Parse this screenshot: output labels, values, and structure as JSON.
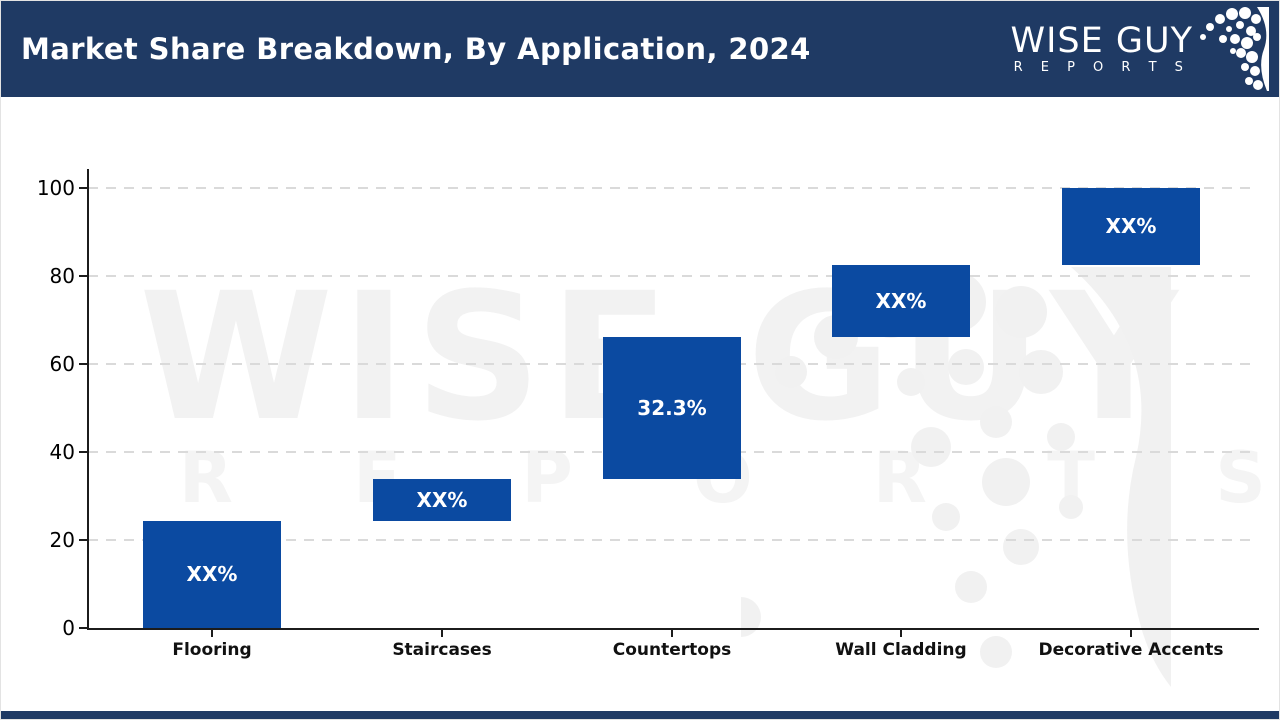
{
  "header": {
    "title": "Market Share Breakdown, By Application, 2024",
    "bg_color": "#1f3a64",
    "text_color": "#ffffff",
    "logo": {
      "line1": "WISE GUY",
      "line2": "R E P O R T S",
      "icon": "dotted-face-icon"
    }
  },
  "watermark": {
    "line1": "WISE GUY",
    "line2": "R E P O R T S",
    "face_icon": "dotted-face-watermark"
  },
  "chart_data": {
    "type": "bar",
    "subtype": "waterfall",
    "title": "Market Share Breakdown, By Application, 2024",
    "categories": [
      "Flooring",
      "Staircases",
      "Countertops",
      "Wall Cladding",
      "Decorative Accents"
    ],
    "series": [
      {
        "name": "Market Share %",
        "starts": [
          0,
          24.4,
          33.9,
          66.2,
          82.6
        ],
        "ends": [
          24.4,
          33.9,
          66.2,
          82.6,
          100
        ]
      }
    ],
    "bar_labels": [
      "XX%",
      "XX%",
      "32.3%",
      "XX%",
      "XX%"
    ],
    "xlabel": "",
    "ylabel": "",
    "ylim": [
      0,
      100
    ],
    "yticks": [
      "0",
      "20",
      "40",
      "60",
      "80",
      "100"
    ],
    "grid": "horizontal-dashed",
    "legend": "none",
    "bar_color": "#0b4aa1",
    "bar_label_color": "#ffffff",
    "axis_color": "#1c1c1c",
    "gridline_color": "#dadada"
  },
  "footer": {
    "bg_color": "#1f3a64"
  }
}
